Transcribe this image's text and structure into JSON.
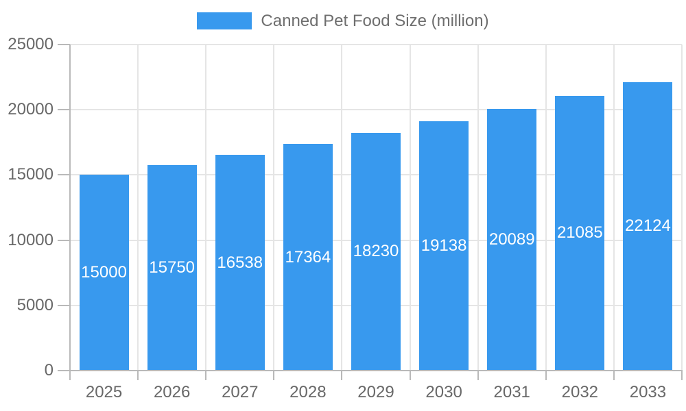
{
  "chart_data": {
    "type": "bar",
    "title": "Canned Pet Food Size (million)",
    "legend": [
      "Canned Pet Food Size (million)"
    ],
    "legend_position": "top",
    "categories": [
      "2025",
      "2026",
      "2027",
      "2028",
      "2029",
      "2030",
      "2031",
      "2032",
      "2033"
    ],
    "values": [
      15000,
      15750,
      16538,
      17364,
      18230,
      19138,
      20089,
      21085,
      22124
    ],
    "data_labels": [
      15000,
      15750,
      16538,
      17364,
      18230,
      19138,
      20089,
      21085,
      22124
    ],
    "data_label_position": "inside-middle",
    "xlabel": "",
    "ylabel": "",
    "ylim": [
      0,
      25000
    ],
    "yticks": [
      0,
      5000,
      10000,
      15000,
      20000,
      25000
    ],
    "grid": true,
    "colors": {
      "bar": "#3899EE",
      "data_label_text": "#FFFFFF",
      "axis_text": "#686868",
      "legend_text": "#6E6E6E",
      "gridline": "#E5E5E5",
      "axis_line": "#B9B9B9",
      "background": "#FFFFFF"
    }
  }
}
